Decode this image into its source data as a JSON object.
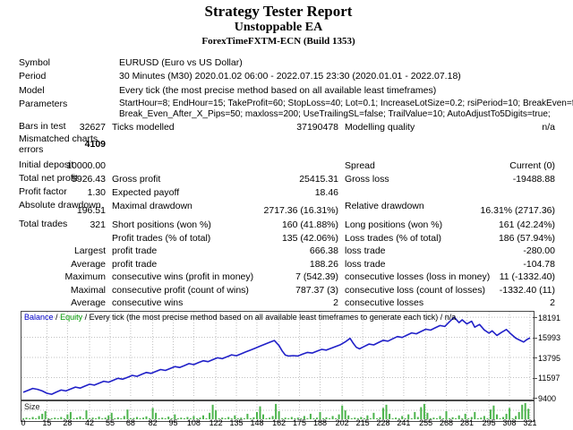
{
  "header": {
    "title": "Strategy Tester Report",
    "ea_name": "Unstoppable EA",
    "server": "ForexTimeFXTM-ECN (Build 1353)"
  },
  "info_rows": [
    {
      "label": "Symbol",
      "value": "EURUSD (Euro vs US Dollar)"
    },
    {
      "label": "Period",
      "value": "30 Minutes (M30) 2020.01.02 06:00 - 2022.07.15 23:30 (2020.01.01 - 2022.07.18)"
    },
    {
      "label": "Model",
      "value": "Every tick (the most precise method based on all available least timeframes)"
    },
    {
      "label": "Parameters",
      "lines": [
        "StartHour=8; EndHour=15; TakeProfit=60; StopLoss=40; Lot=0.1; IncreaseLotSize=0.2; rsiPeriod=10; BreakEven=false;",
        "Break_Even_After_X_Pips=50; maxloss=200; UseTrailingSL=false; TrailValue=10; AutoAdjustTo5Digits=true;"
      ]
    }
  ],
  "stats_rows": [
    {
      "cells": [
        "Bars in test",
        "32627",
        "Ticks modelled",
        "37190478",
        "Modelling quality",
        "n/a"
      ]
    },
    {
      "cells": [
        "Mismatched charts errors",
        "4109",
        "",
        "",
        "",
        ""
      ],
      "tall": true,
      "bold_value": true
    },
    {
      "cells": [
        "Initial deposit",
        "10000.00",
        "",
        "",
        "Spread",
        "Current (0)"
      ]
    },
    {
      "cells": [
        "Total net profit",
        "5926.43",
        "Gross profit",
        "25415.31",
        "Gross loss",
        "-19488.88"
      ]
    },
    {
      "cells": [
        "Profit factor",
        "1.30",
        "Expected payoff",
        "18.46",
        "",
        ""
      ]
    },
    {
      "cells": [
        "Absolute drawdown",
        "196.51",
        "Maximal drawdown",
        "2717.36 (16.31%)",
        "Relative drawdown",
        "16.31% (2717.36)"
      ],
      "tall": true
    },
    {
      "cells": [
        "Total trades",
        "321",
        "Short positions (won %)",
        "160 (41.88%)",
        "Long positions (won %)",
        "161 (42.24%)"
      ]
    },
    {
      "cells": [
        "",
        "",
        "Profit trades (% of total)",
        "135 (42.06%)",
        "Loss trades (% of total)",
        "186 (57.94%)"
      ]
    },
    {
      "cells": [
        "",
        "Largest",
        "profit trade",
        "666.38",
        "loss trade",
        "-280.00"
      ]
    },
    {
      "cells": [
        "",
        "Average",
        "profit trade",
        "188.26",
        "loss trade",
        "-104.78"
      ]
    },
    {
      "cells": [
        "",
        "Maximum",
        "consecutive wins (profit in money)",
        "7 (542.39)",
        "consecutive losses (loss in money)",
        "11 (-1332.40)"
      ]
    },
    {
      "cells": [
        "",
        "Maximal",
        "consecutive profit (count of wins)",
        "787.37 (3)",
        "consecutive loss (count of losses)",
        "-1332.40 (11)"
      ]
    },
    {
      "cells": [
        "",
        "Average",
        "consecutive wins",
        "2",
        "consecutive losses",
        "2"
      ]
    }
  ],
  "chart_data": {
    "type": "line+bar",
    "legend": {
      "balance_label": "Balance",
      "separator": "/",
      "equity_label": "Equity",
      "description": "/ Every tick (the most precise method based on all available least timeframes to generate each tick) / n/a"
    },
    "size_label": "Size",
    "colors": {
      "balance_label": "#0000cc",
      "equity_label": "#009a00",
      "balance_line": "#2020c8",
      "bars": "#4cb44c",
      "grid": "#c0c0c0",
      "border": "#4a4a4a"
    },
    "y_ticks": [
      18191,
      15993,
      13795,
      11597,
      9400
    ],
    "x_ticks": [
      0,
      15,
      28,
      42,
      55,
      68,
      82,
      95,
      108,
      122,
      135,
      148,
      162,
      175,
      188,
      202,
      215,
      228,
      241,
      255,
      268,
      281,
      295,
      308,
      321
    ],
    "x_range": [
      0,
      321
    ],
    "y_range": [
      9400,
      18784
    ],
    "balance_series": [
      [
        0,
        10000
      ],
      [
        3,
        10210
      ],
      [
        6,
        10420
      ],
      [
        9,
        10320
      ],
      [
        12,
        10140
      ],
      [
        15,
        9890
      ],
      [
        18,
        9780
      ],
      [
        21,
        10030
      ],
      [
        24,
        10240
      ],
      [
        27,
        10140
      ],
      [
        30,
        10350
      ],
      [
        33,
        10560
      ],
      [
        36,
        10460
      ],
      [
        39,
        10670
      ],
      [
        42,
        10880
      ],
      [
        45,
        10780
      ],
      [
        48,
        10990
      ],
      [
        51,
        11200
      ],
      [
        54,
        11100
      ],
      [
        57,
        11310
      ],
      [
        60,
        11520
      ],
      [
        63,
        11420
      ],
      [
        66,
        11630
      ],
      [
        69,
        11840
      ],
      [
        72,
        11740
      ],
      [
        75,
        11950
      ],
      [
        78,
        12160
      ],
      [
        81,
        12060
      ],
      [
        84,
        12270
      ],
      [
        87,
        12480
      ],
      [
        90,
        12380
      ],
      [
        93,
        12590
      ],
      [
        96,
        12800
      ],
      [
        99,
        12700
      ],
      [
        102,
        12910
      ],
      [
        105,
        13120
      ],
      [
        108,
        13020
      ],
      [
        111,
        13230
      ],
      [
        114,
        13440
      ],
      [
        117,
        13340
      ],
      [
        120,
        13550
      ],
      [
        123,
        13760
      ],
      [
        126,
        13660
      ],
      [
        129,
        13870
      ],
      [
        132,
        14080
      ],
      [
        135,
        13980
      ],
      [
        138,
        14190
      ],
      [
        141,
        14400
      ],
      [
        144,
        14610
      ],
      [
        147,
        14820
      ],
      [
        150,
        15030
      ],
      [
        153,
        15240
      ],
      [
        156,
        15450
      ],
      [
        159,
        15650
      ],
      [
        162,
        15100
      ],
      [
        164,
        14500
      ],
      [
        166,
        14050
      ],
      [
        168,
        13960
      ],
      [
        171,
        13990
      ],
      [
        174,
        13960
      ],
      [
        177,
        14160
      ],
      [
        180,
        14350
      ],
      [
        183,
        14280
      ],
      [
        186,
        14480
      ],
      [
        189,
        14680
      ],
      [
        192,
        14600
      ],
      [
        195,
        14800
      ],
      [
        198,
        15000
      ],
      [
        201,
        15200
      ],
      [
        204,
        15500
      ],
      [
        207,
        15880
      ],
      [
        209,
        15350
      ],
      [
        211,
        14900
      ],
      [
        213,
        14740
      ],
      [
        216,
        15000
      ],
      [
        219,
        15260
      ],
      [
        222,
        15170
      ],
      [
        225,
        15420
      ],
      [
        228,
        15670
      ],
      [
        231,
        15580
      ],
      [
        234,
        15830
      ],
      [
        237,
        16080
      ],
      [
        240,
        15980
      ],
      [
        243,
        16230
      ],
      [
        246,
        16480
      ],
      [
        249,
        16380
      ],
      [
        252,
        16630
      ],
      [
        255,
        16880
      ],
      [
        258,
        16780
      ],
      [
        261,
        17030
      ],
      [
        264,
        17280
      ],
      [
        267,
        17180
      ],
      [
        270,
        17700
      ],
      [
        273,
        18190
      ],
      [
        276,
        17600
      ],
      [
        278,
        17900
      ],
      [
        281,
        17450
      ],
      [
        284,
        17750
      ],
      [
        286,
        17100
      ],
      [
        289,
        17400
      ],
      [
        292,
        16800
      ],
      [
        295,
        16450
      ],
      [
        297,
        16700
      ],
      [
        300,
        16200
      ],
      [
        303,
        16550
      ],
      [
        306,
        16850
      ],
      [
        309,
        16350
      ],
      [
        312,
        15900
      ],
      [
        315,
        15650
      ],
      [
        317,
        15480
      ],
      [
        319,
        15750
      ],
      [
        321,
        15926
      ]
    ],
    "size_bar_step": 2,
    "size_bars": [
      6,
      10,
      6,
      14,
      6,
      20,
      34,
      50,
      6,
      6,
      10,
      6,
      14,
      6,
      30,
      45,
      6,
      10,
      18,
      6,
      55,
      6,
      10,
      6,
      16,
      6,
      10,
      24,
      40,
      6,
      12,
      6,
      20,
      60,
      6,
      8,
      14,
      6,
      10,
      18,
      6,
      70,
      40,
      6,
      10,
      6,
      16,
      6,
      30,
      6,
      10,
      6,
      14,
      6,
      20,
      6,
      10,
      24,
      6,
      40,
      90,
      55,
      6,
      10,
      6,
      14,
      6,
      24,
      6,
      10,
      6,
      34,
      6,
      12,
      45,
      80,
      30,
      6,
      10,
      20,
      95,
      50,
      6,
      10,
      6,
      14,
      6,
      10,
      6,
      20,
      6,
      34,
      6,
      10,
      45,
      6,
      12,
      6,
      20,
      6,
      30,
      85,
      55,
      24,
      6,
      10,
      6,
      14,
      6,
      24,
      6,
      40,
      6,
      12,
      70,
      90,
      34,
      6,
      10,
      6,
      20,
      6,
      30,
      6,
      45,
      14,
      75,
      95,
      40,
      6,
      10,
      6,
      20,
      6,
      50,
      6,
      12,
      6,
      24,
      6,
      34,
      6,
      14,
      45,
      6,
      10,
      20,
      6,
      60,
      85,
      30,
      6,
      14,
      34,
      70,
      6,
      20,
      45,
      90,
      100,
      65
    ]
  }
}
